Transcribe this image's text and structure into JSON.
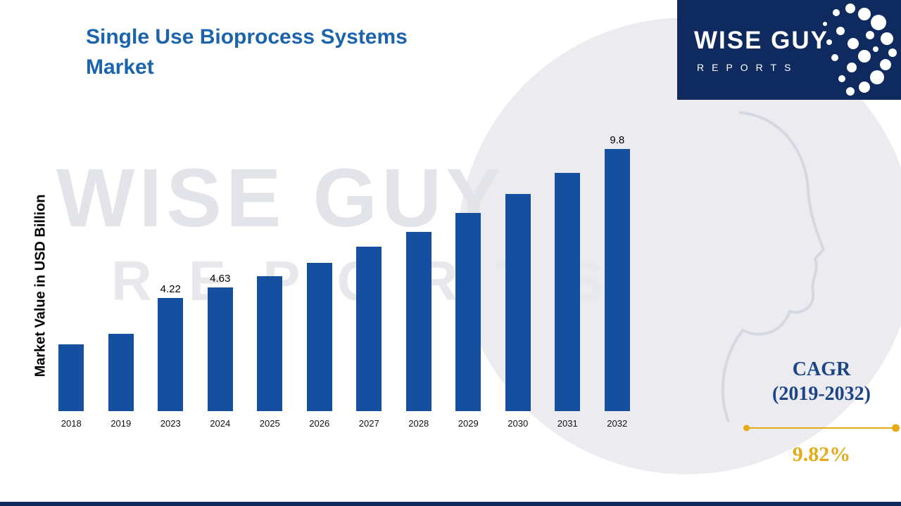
{
  "title": {
    "line1": "Single Use Bioprocess Systems",
    "line2": "Market"
  },
  "logo": {
    "line1": "WISE GUY",
    "line2": "REPORTS"
  },
  "watermark": {
    "line1": "WISE GUY",
    "line2": "REPORTS"
  },
  "chart_data": {
    "type": "bar",
    "title": "Single Use Bioprocess Systems Market",
    "ylabel": "Market Value in USD Billion",
    "xlabel": "",
    "categories": [
      "2018",
      "2019",
      "2023",
      "2024",
      "2025",
      "2026",
      "2027",
      "2028",
      "2029",
      "2030",
      "2031",
      "2032"
    ],
    "values": [
      2.5,
      2.9,
      4.22,
      4.63,
      5.05,
      5.55,
      6.15,
      6.7,
      7.4,
      8.1,
      8.9,
      9.8
    ],
    "labels": [
      null,
      null,
      "4.22",
      "4.63",
      null,
      null,
      null,
      null,
      null,
      null,
      null,
      "9.8"
    ],
    "ylim": [
      0,
      10.5
    ],
    "grid": false,
    "legend": false,
    "bar_color": "#1550a0",
    "unit": "USD Billion"
  },
  "cagr": {
    "label": "CAGR",
    "range": "(2019-2032)",
    "value": "9.82%"
  },
  "colors": {
    "navy": "#0e2a5e",
    "title_blue": "#1b63ab",
    "bar_blue": "#1550a0",
    "gold": "#e2ab17",
    "watermark_gray": "#e3e4e9",
    "circle_gray": "#ececf0",
    "cagr_blue": "#1c4587"
  }
}
